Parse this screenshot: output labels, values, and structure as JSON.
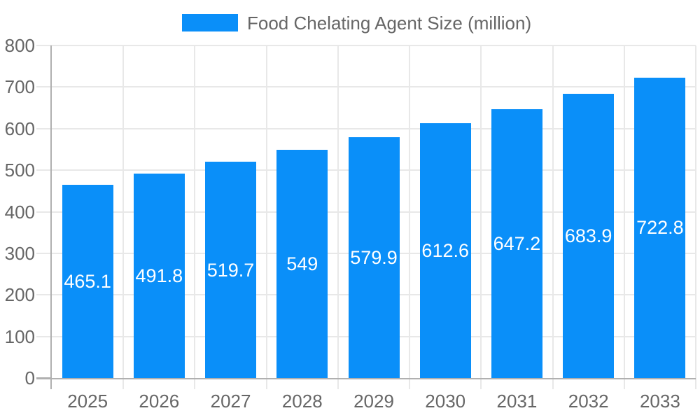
{
  "chart_data": {
    "type": "bar",
    "title": "Food Chelating Agent Size (million)",
    "legend": {
      "position": "top",
      "entries": [
        "Food Chelating Agent Size (million)"
      ]
    },
    "categories": [
      "2025",
      "2026",
      "2027",
      "2028",
      "2029",
      "2030",
      "2031",
      "2032",
      "2033"
    ],
    "series": [
      {
        "name": "Food Chelating Agent Size (million)",
        "values": [
          465.1,
          491.8,
          519.7,
          549,
          579.9,
          612.6,
          647.2,
          683.9,
          722.8
        ]
      }
    ],
    "value_labels": [
      "465.1",
      "491.8",
      "519.7",
      "549",
      "579.9",
      "612.6",
      "647.2",
      "683.9",
      "722.8"
    ],
    "xlabel": "",
    "ylabel": "",
    "ylim": [
      0,
      800
    ],
    "yticks": [
      0,
      100,
      200,
      300,
      400,
      500,
      600,
      700,
      800
    ],
    "grid": true,
    "colors": {
      "bar": "#0a8ff9",
      "grid": "#e8e8e8",
      "axis": "#b0b0b0",
      "text": "#666666",
      "value_text": "#ffffff",
      "background": "#ffffff"
    }
  }
}
